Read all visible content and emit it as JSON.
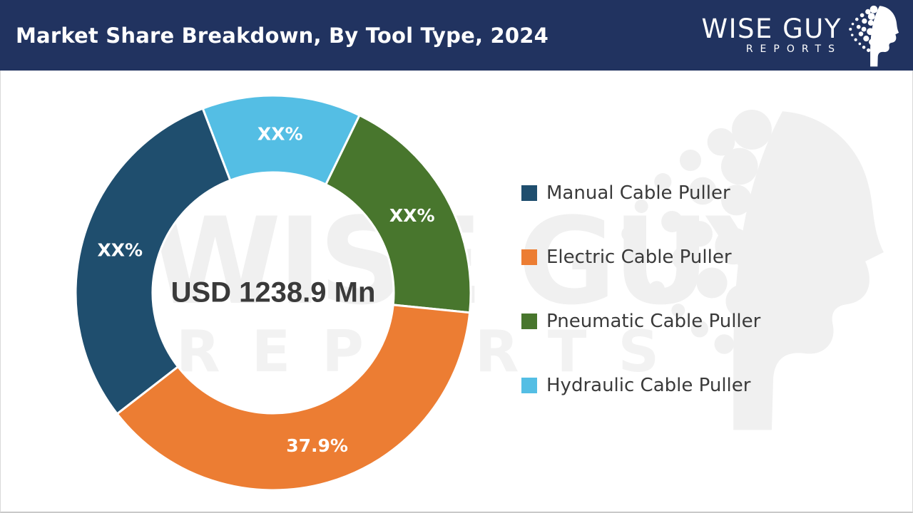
{
  "header": {
    "logo": {
      "line1": "WISE GUY",
      "line2": "REPORTS"
    }
  },
  "watermark": {
    "line1": "WISE GUY",
    "line2": "REPORTS"
  },
  "chart_data": {
    "type": "pie",
    "subtype": "donut",
    "title": "Market Share Breakdown, By Tool Type, 2024",
    "year": "2024",
    "center_total": "USD 1238.9 Mn",
    "start_angle_deg": 110.9,
    "direction": "clockwise",
    "donut_hole_ratio": 0.61,
    "legend_position": "right",
    "segments": [
      {
        "label": "Manual Cable Puller",
        "display_pct": "XX%",
        "value_pct_est": 29.7,
        "color": "#1F4E6E"
      },
      {
        "label": "Electric Cable Puller",
        "display_pct": "37.9%",
        "value_pct_est": 37.9,
        "color": "#EC7D33"
      },
      {
        "label": "Pneumatic Cable Puller",
        "display_pct": "XX%",
        "value_pct_est": 19.4,
        "color": "#48762D"
      },
      {
        "label": "Hydraulic Cable Puller",
        "display_pct": "XX%",
        "value_pct_est": 13.0,
        "color": "#54BEE4"
      }
    ],
    "plot_order": [
      3,
      2,
      1,
      0
    ]
  }
}
